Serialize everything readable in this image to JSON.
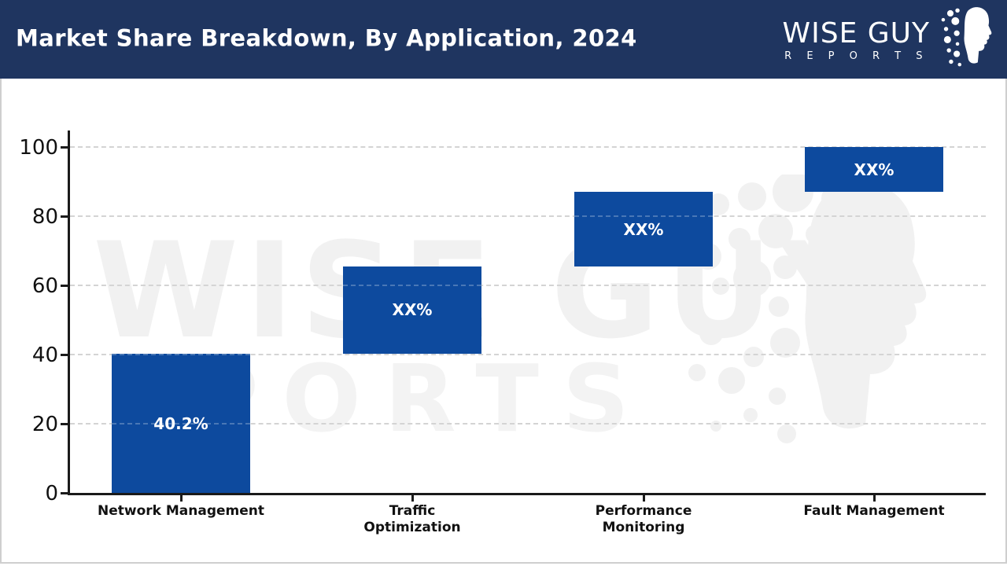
{
  "header": {
    "title": "Market Share Breakdown, By Application, 2024",
    "logo": {
      "line1": "WISE GUY",
      "line2": "R E P O R T S"
    }
  },
  "watermark": {
    "line1": "WISE GUY",
    "line2": "PORTS"
  },
  "colors": {
    "header_bg": "#1f3560",
    "bar": "#0d4a9e",
    "bar_label": "#ffffff",
    "gridline": "#d4d4d4",
    "watermark": "#f1f1f1"
  },
  "chart_data": {
    "type": "bar",
    "variant": "floating-waterfall",
    "title": "Market Share Breakdown, By Application, 2024",
    "categories": [
      "Network Management",
      "Traffic\nOptimization",
      "Performance\nMonitoring",
      "Fault Management"
    ],
    "series": [
      {
        "name": "Market Share (%)",
        "segments": [
          {
            "category": "Network Management",
            "start": 0,
            "end": 40.2,
            "label": "40.2%"
          },
          {
            "category": "Traffic Optimization",
            "start": 40.2,
            "end": 65.5,
            "label": "XX%"
          },
          {
            "category": "Performance Monitoring",
            "start": 65.5,
            "end": 87.0,
            "label": "XX%"
          },
          {
            "category": "Fault Management",
            "start": 87.0,
            "end": 100.0,
            "label": "XX%"
          }
        ]
      }
    ],
    "xlabel": "",
    "ylabel": "",
    "ylim": [
      0,
      100
    ],
    "yticks": [
      0,
      20,
      40,
      60,
      80,
      100
    ],
    "grid": "horizontal-dashed",
    "legend": "none"
  }
}
